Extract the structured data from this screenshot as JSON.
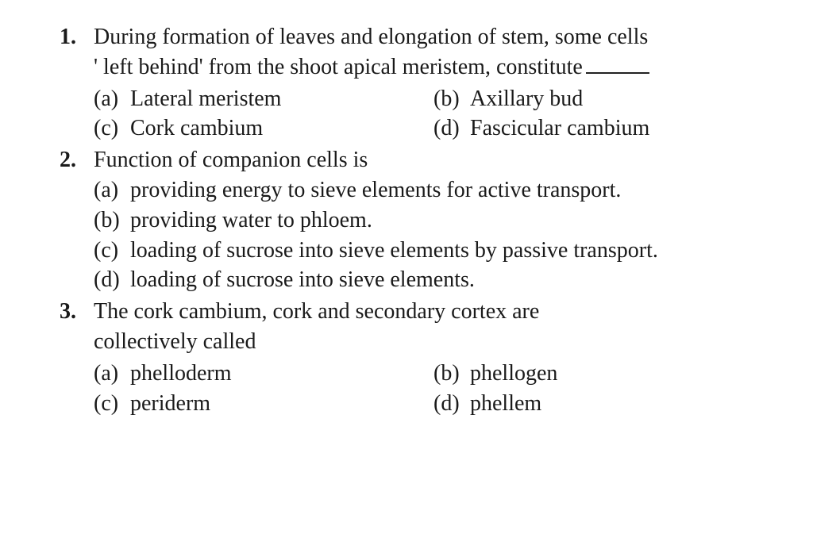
{
  "font": {
    "family": "Times New Roman",
    "size_pt": 21,
    "color": "#1a1a1a",
    "weight_num": "bold",
    "weight_body": "normal"
  },
  "background_color": "#ffffff",
  "questions": [
    {
      "number": "1.",
      "text_line1": "During formation of leaves and elongation of stem, some cells",
      "text_line2_prefix": "' left behind' from the shoot apical meristem, constitute",
      "has_blank": true,
      "options_layout": "2col",
      "options": [
        {
          "label": "(a)",
          "text": "Lateral meristem"
        },
        {
          "label": "(b)",
          "text": "Axillary bud"
        },
        {
          "label": "(c)",
          "text": "Cork cambium"
        },
        {
          "label": "(d)",
          "text": "Fascicular cambium"
        }
      ]
    },
    {
      "number": "2.",
      "text_line1": "Function of companion cells is",
      "options_layout": "1col",
      "options": [
        {
          "label": "(a)",
          "text": "providing energy to sieve elements for active transport."
        },
        {
          "label": "(b)",
          "text": "providing water to phloem."
        },
        {
          "label": "(c)",
          "text": "loading of sucrose into sieve elements by passive transport."
        },
        {
          "label": "(d)",
          "text": "loading of sucrose into sieve elements."
        }
      ]
    },
    {
      "number": "3.",
      "text_line1": "The cork cambium, cork and secondary cortex are",
      "text_line2_prefix": "collectively called",
      "has_blank": false,
      "options_layout": "2col",
      "options": [
        {
          "label": "(a)",
          "text": "phelloderm"
        },
        {
          "label": "(b)",
          "text": "phellogen"
        },
        {
          "label": "(c)",
          "text": "periderm"
        },
        {
          "label": "(d)",
          "text": "phellem"
        }
      ]
    }
  ]
}
